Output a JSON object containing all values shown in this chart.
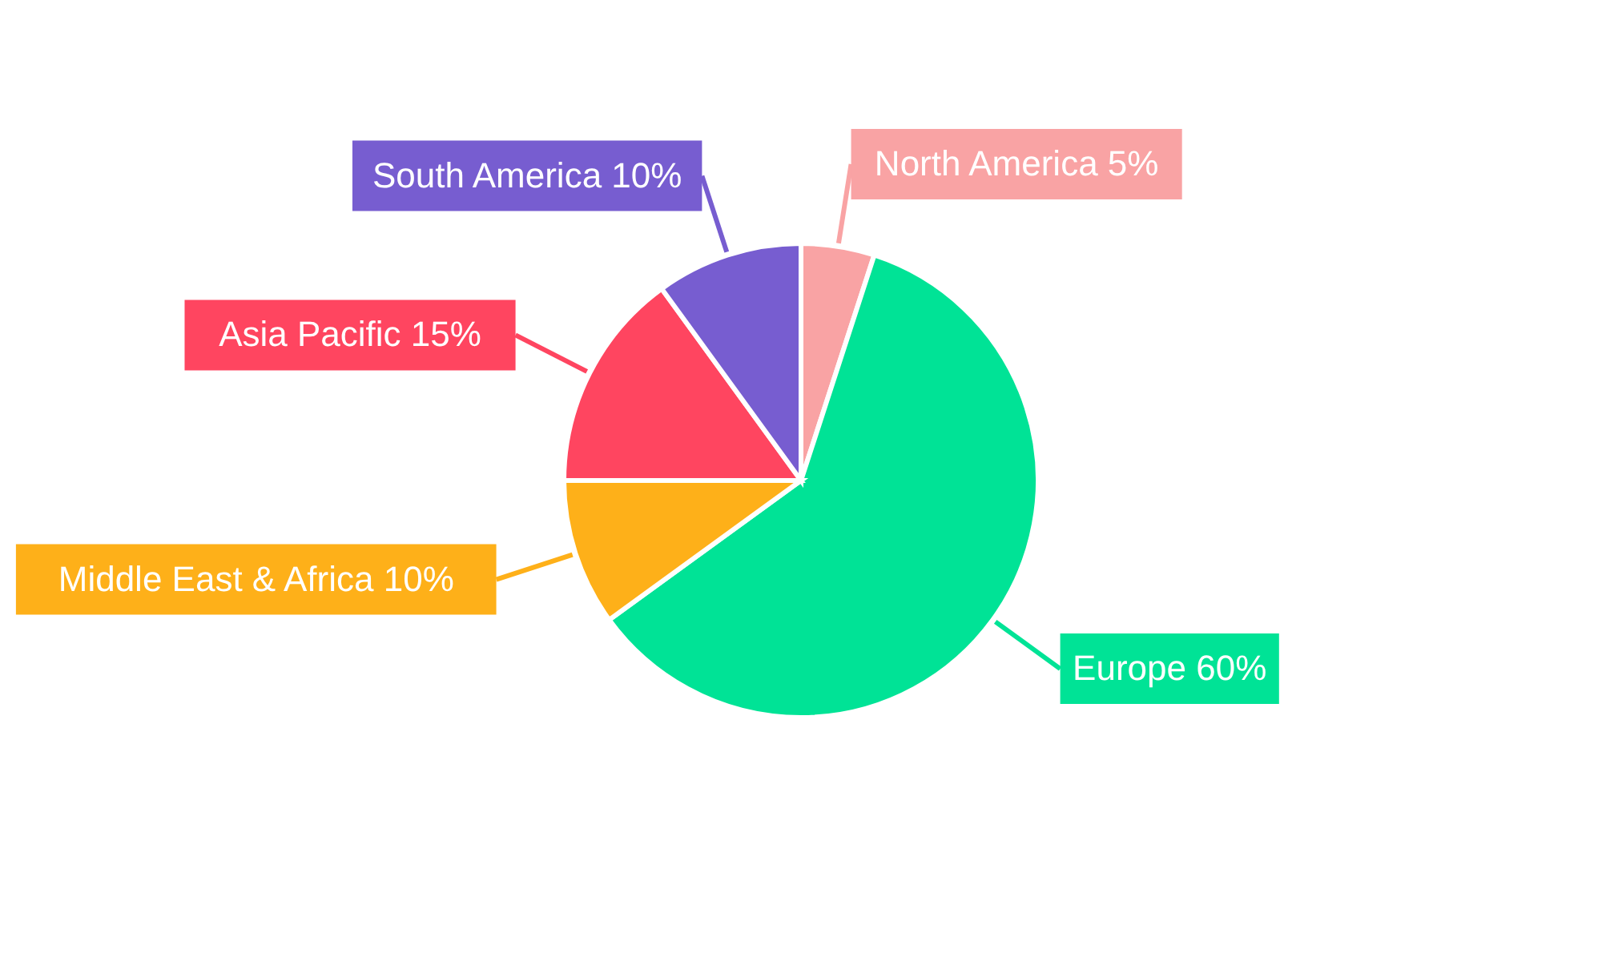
{
  "chart_data": {
    "type": "pie",
    "categories": [
      "North America",
      "Europe",
      "Middle East & Africa",
      "Asia Pacific",
      "South America"
    ],
    "values": [
      5,
      60,
      10,
      15,
      10
    ],
    "value_labels": [
      "5%",
      "60%",
      "10%",
      "15%",
      "10%"
    ],
    "colors": [
      "#f9a3a4",
      "#00e396",
      "#feb019",
      "#ff4560",
      "#775dd0"
    ]
  }
}
